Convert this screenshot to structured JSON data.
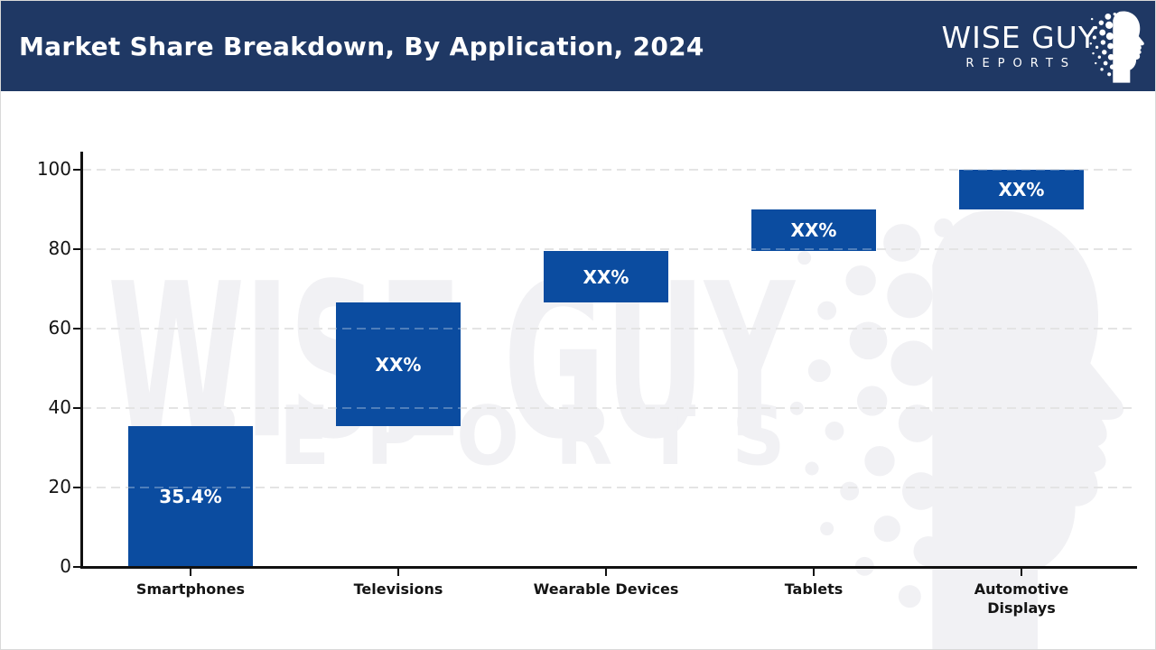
{
  "header": {
    "title": "Market Share Breakdown, By Application, 2024",
    "logo_line1": "WISE GUY",
    "logo_line2": "REPORTS"
  },
  "watermark": {
    "line1": "WISE GUY",
    "line2": "REPORTS"
  },
  "colors": {
    "header_bg": "#1f3864",
    "header_text": "#ffffff",
    "bar": "#0b4ca0",
    "bar_label": "#ffffff",
    "grid": "#d9d9d9",
    "axis": "#111111",
    "tick_text": "#141414",
    "watermark": "#f1f1f4"
  },
  "chart_data": {
    "type": "bar",
    "subtype": "waterfall",
    "title": "Market Share Breakdown, By Application, 2024",
    "categories": [
      "Smartphones",
      "Televisions",
      "Wearable Devices",
      "Tablets",
      "Automotive Displays"
    ],
    "category_label_lines": [
      [
        "Smartphones"
      ],
      [
        "Televisions"
      ],
      [
        "Wearable Devices"
      ],
      [
        "Tablets"
      ],
      [
        "Automotive",
        "Displays"
      ]
    ],
    "segments": [
      {
        "category": "Smartphones",
        "start": 0,
        "end": 35.4,
        "label": "35.4%"
      },
      {
        "category": "Televisions",
        "start": 35.4,
        "end": 66.5,
        "label": "XX%"
      },
      {
        "category": "Wearable Devices",
        "start": 66.5,
        "end": 79.5,
        "label": "XX%"
      },
      {
        "category": "Tablets",
        "start": 79.5,
        "end": 90,
        "label": "XX%"
      },
      {
        "category": "Automotive Displays",
        "start": 90,
        "end": 100,
        "label": "XX%"
      }
    ],
    "xlabel": "",
    "ylabel": "",
    "yticks": [
      0,
      20,
      40,
      60,
      80,
      100
    ],
    "ylim": [
      0,
      105
    ],
    "grid": "horizontal dashed",
    "legend": "none",
    "bar_color": "#0b4ca0",
    "bar_label_color": "#ffffff"
  }
}
